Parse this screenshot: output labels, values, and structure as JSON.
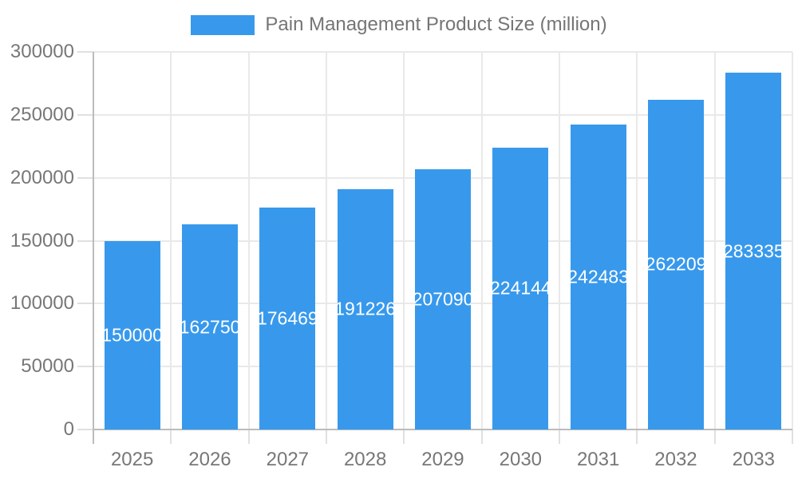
{
  "legend": {
    "label": "Pain Management Product Size (million)"
  },
  "colors": {
    "bar": "#3899EC",
    "grid": "#e9e9e9",
    "axis": "#bcbcbc",
    "tick": "#e0e0e0",
    "tick_label_text": "#777777",
    "bar_label_text": "#ffffff",
    "legend_text": "#757575",
    "background": "#ffffff"
  },
  "chart_data": {
    "type": "bar",
    "title": "Pain Management Product Size (million)",
    "categories": [
      "2025",
      "2026",
      "2027",
      "2028",
      "2029",
      "2030",
      "2031",
      "2032",
      "2033"
    ],
    "values": [
      150000,
      162750,
      176469,
      191226,
      207090,
      224144,
      242483,
      262209,
      283335
    ],
    "xlabel": "",
    "ylabel": "",
    "ylim": [
      0,
      300000
    ],
    "yticks": [
      0,
      50000,
      100000,
      150000,
      200000,
      250000,
      300000
    ],
    "grid": true,
    "legend_position": "top-center",
    "data_labels_position": "inside-center"
  }
}
